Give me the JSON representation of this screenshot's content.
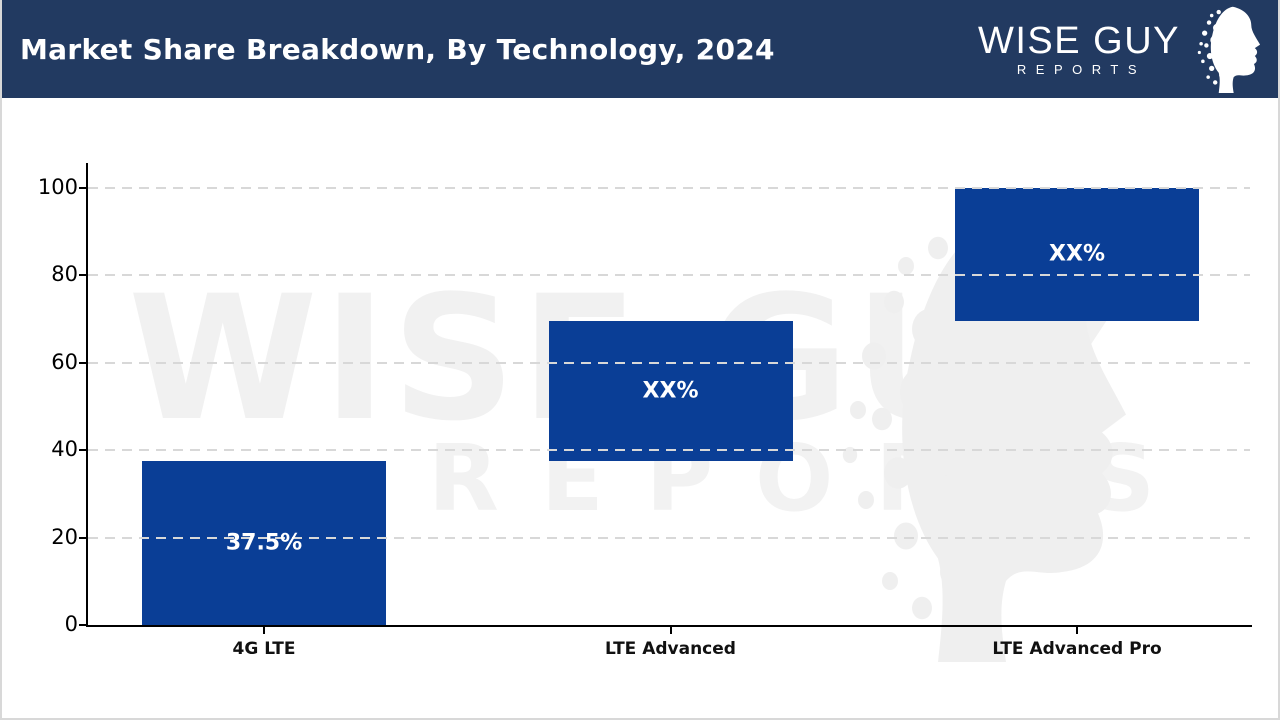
{
  "header": {
    "title": "Market Share Breakdown, By Technology, 2024",
    "logo": {
      "line1": "WISE GUY",
      "line2": "REPORTS"
    }
  },
  "watermark": {
    "line1": "WISE GUY",
    "line2": "REPORTS"
  },
  "colors": {
    "header_bg": "#223A61",
    "bar": "#0A3E96",
    "bar_label": "#FFFFFF",
    "grid": "#D8D8D8",
    "axis": "#000000",
    "watermark": "#F1F1F1"
  },
  "chart_data": {
    "type": "bar",
    "subtype": "floating-range-bars",
    "title": "Market Share Breakdown, By Technology, 2024",
    "xlabel": "",
    "ylabel": "",
    "categories": [
      "4G LTE",
      "LTE Advanced",
      "LTE Advanced Pro"
    ],
    "bars": [
      {
        "category": "4G LTE",
        "start": 0,
        "end": 37.5,
        "label": "37.5%"
      },
      {
        "category": "LTE Advanced",
        "start": 37.5,
        "end": 69.5,
        "label": "XX%"
      },
      {
        "category": "LTE Advanced Pro",
        "start": 69.5,
        "end": 100,
        "label": "XX%"
      }
    ],
    "yticks": [
      0,
      20,
      40,
      60,
      80,
      100
    ],
    "ylim": [
      0,
      105
    ],
    "grid": "dashed-horizontal-over-bars",
    "legend": "none"
  }
}
